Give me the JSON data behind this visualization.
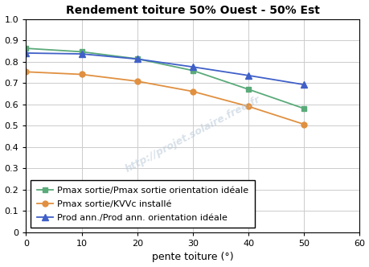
{
  "title": "Rendement toiture 50% Ouest - 50% Est",
  "xlabel": "pente toiture (°)",
  "xlim": [
    0,
    60
  ],
  "ylim": [
    0,
    1.0
  ],
  "xticks": [
    0,
    10,
    20,
    30,
    40,
    50,
    60
  ],
  "yticks": [
    0,
    0.1,
    0.2,
    0.3,
    0.4,
    0.5,
    0.6,
    0.7,
    0.8,
    0.9,
    1.0
  ],
  "series": [
    {
      "label": "Pmax sortie/Pmax sortie orientation idéale",
      "x": [
        0,
        10,
        20,
        30,
        40,
        50
      ],
      "y": [
        0.862,
        0.846,
        0.813,
        0.758,
        0.67,
        0.58
      ],
      "color": "#5aaa7a",
      "marker": "s",
      "markersize": 5
    },
    {
      "label": "Pmax sortie/KVVc installé",
      "x": [
        0,
        10,
        20,
        30,
        40,
        50
      ],
      "y": [
        0.752,
        0.74,
        0.708,
        0.66,
        0.59,
        0.506
      ],
      "color": "#e09040",
      "marker": "o",
      "markersize": 5
    },
    {
      "label": "Prod ann./Prod ann. orientation idéale",
      "x": [
        0,
        10,
        20,
        30,
        40,
        50
      ],
      "y": [
        0.84,
        0.836,
        0.812,
        0.775,
        0.735,
        0.692
      ],
      "color": "#4060c8",
      "marker": "^",
      "markersize": 6
    }
  ],
  "watermark": "http://projet.solaire.free.fr",
  "watermark_color": "#b8c8d8",
  "watermark_alpha": 0.55,
  "background_color": "#ffffff",
  "grid_color": "#cccccc",
  "legend_fontsize": 8,
  "title_fontsize": 10,
  "xlabel_fontsize": 9,
  "tick_fontsize": 8
}
